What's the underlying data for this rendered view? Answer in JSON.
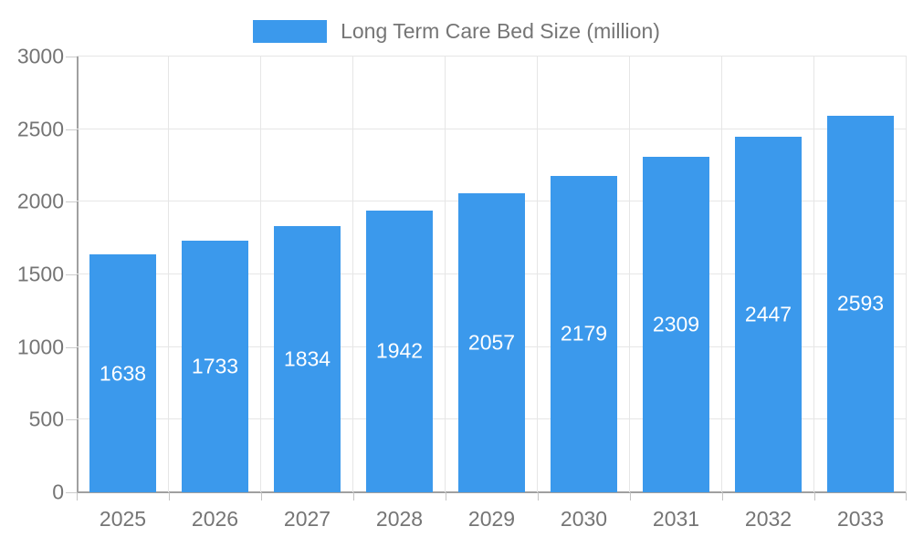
{
  "legend": {
    "label": "Long Term Care Bed Size (million)",
    "swatch_color": "#3b99ec"
  },
  "chart_data": {
    "type": "bar",
    "title": "Long Term Care Bed Size (million)",
    "series_name": "Long Term Care Bed Size (million)",
    "categories": [
      "2025",
      "2026",
      "2027",
      "2028",
      "2029",
      "2030",
      "2031",
      "2032",
      "2033"
    ],
    "values": [
      1638,
      1733,
      1834,
      1942,
      2057,
      2179,
      2309,
      2447,
      2593
    ],
    "xlabel": "",
    "ylabel": "",
    "ylim": [
      0,
      3000
    ],
    "y_ticks": [
      0,
      500,
      1000,
      1500,
      2000,
      2500,
      3000
    ],
    "grid": true,
    "legend_position": "top",
    "bar_width_fraction": 0.73,
    "colors": {
      "bar": "#3b99ec",
      "bar_value_label": "#ffffff",
      "axis_line": "#a0a0a0",
      "gridline": "#e6e6e6",
      "tick_mark": "#c4c4c4",
      "axis_text": "#757575"
    }
  }
}
